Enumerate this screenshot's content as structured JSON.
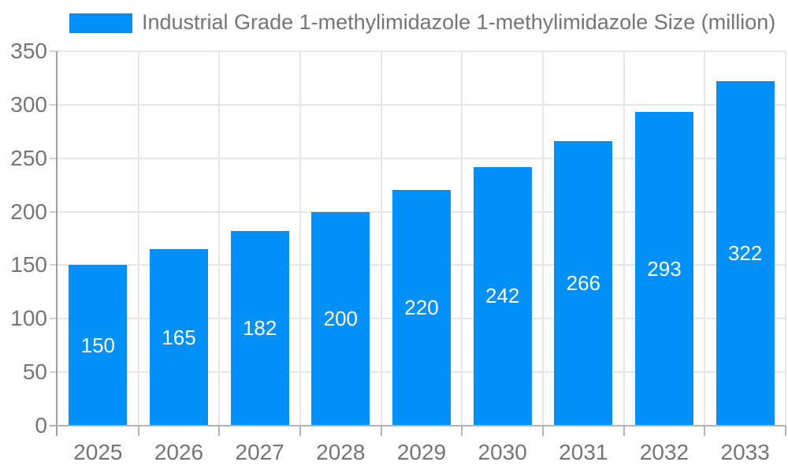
{
  "chart_data": {
    "type": "bar",
    "title": "Industrial Grade 1-methylimidazole 1-methylimidazole Size (million)",
    "legend_position": "top",
    "legend_entries": [
      "Industrial Grade 1-methylimidazole 1-methylimidazole Size (million)"
    ],
    "categories": [
      "2025",
      "2026",
      "2027",
      "2028",
      "2029",
      "2030",
      "2031",
      "2032",
      "2033"
    ],
    "series": [
      {
        "name": "Industrial Grade 1-methylimidazole 1-methylimidazole Size (million)",
        "values": [
          150,
          165,
          182,
          200,
          220,
          242,
          266,
          293,
          322
        ]
      }
    ],
    "value_labels_shown": true,
    "xlabel": "",
    "ylabel": "",
    "ylim": [
      0,
      350
    ],
    "yticks": [
      0,
      50,
      100,
      150,
      200,
      250,
      300,
      350
    ],
    "grid": true,
    "colors": {
      "bar": "#0190F8",
      "value_label": "#FFFFFF",
      "axis_text": "#757575",
      "legend_text": "#757575",
      "gridline": "#E6E6E6",
      "axis_line": "#9E9E9E",
      "baseline": "#B3B3B3",
      "tick_mark": "#CFCFCF",
      "background": "#FFFFFF"
    }
  }
}
